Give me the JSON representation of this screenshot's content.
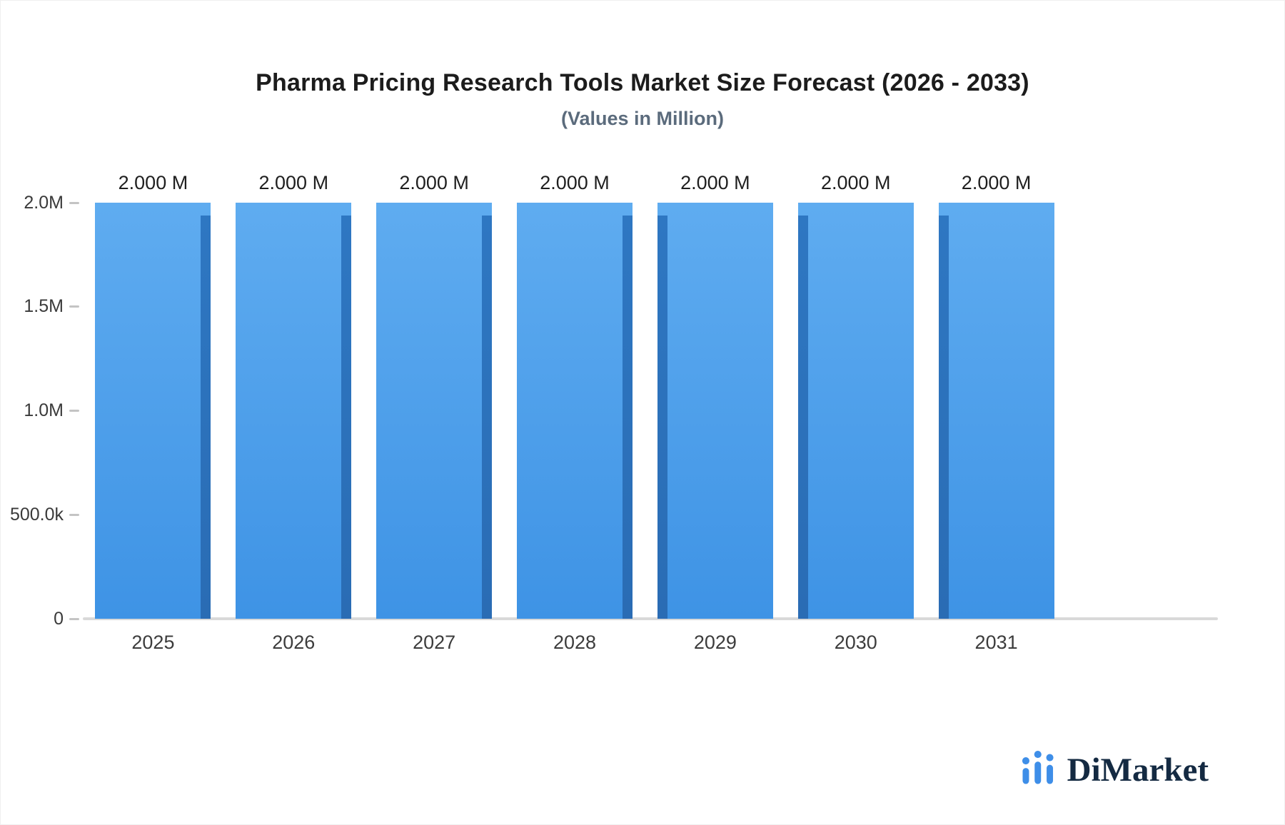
{
  "header": {
    "title": "Pharma Pricing Research Tools Market Size Forecast (2026 - 2033)",
    "subtitle": "(Values in Million)"
  },
  "chart_data": {
    "type": "bar",
    "title": "Pharma Pricing Research Tools Market Size Forecast (2026 - 2033)",
    "subtitle": "(Values in Million)",
    "unit": "Million",
    "categories": [
      "2025",
      "2026",
      "2027",
      "2028",
      "2029",
      "2030",
      "2031"
    ],
    "values": [
      2000000,
      2000000,
      2000000,
      2000000,
      2000000,
      2000000,
      2000000
    ],
    "value_labels": [
      "2.000 M",
      "2.000 M",
      "2.000 M",
      "2.000 M",
      "2.000 M",
      "2.000 M",
      "2.000 M"
    ],
    "xlabel": "",
    "ylabel": "",
    "ylim": [
      0,
      2000000
    ],
    "y_ticks": [
      {
        "label": "2.0M",
        "value": 2000000
      },
      {
        "label": "1.5M",
        "value": 1500000
      },
      {
        "label": "1.0M",
        "value": 1000000
      },
      {
        "label": "500.0k",
        "value": 500000
      },
      {
        "label": "0",
        "value": 0
      }
    ],
    "grid": false,
    "legend": false,
    "bar_color_top": "#5FACF0",
    "bar_color_bottom": "#3E93E5",
    "bar_side_color": "#2E77C2",
    "axis_line_color": "#D9D9D9"
  },
  "branding": {
    "logo_text": "DiMarket",
    "logo_icon": "bar-chart-logo-icon",
    "logo_icon_color": "#3E8EE8",
    "logo_text_color": "#142A42"
  }
}
